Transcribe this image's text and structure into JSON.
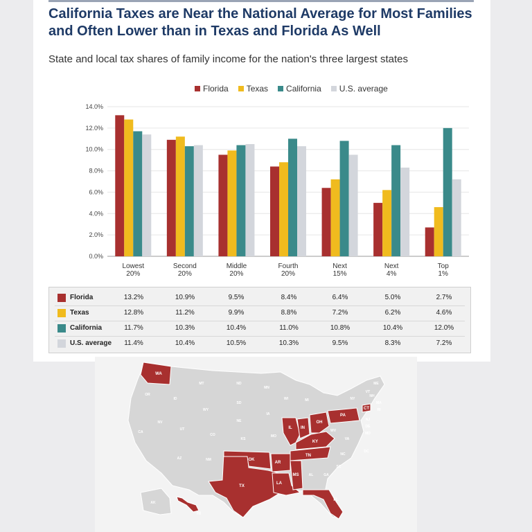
{
  "title": "California Taxes are Near the National Average for Most Families and Often Lower than in Texas and Florida As Well",
  "subtitle": "State and local tax shares of family income for the nation's three largest states",
  "colors": {
    "Florida": "#a8302f",
    "Texas": "#f0bb1e",
    "California": "#3a8a8a",
    "U.S. average": "#d3d6dc"
  },
  "chart_data": {
    "type": "bar",
    "categories": [
      "Lowest 20%",
      "Second 20%",
      "Middle 20%",
      "Fourth 20%",
      "Next 15%",
      "Next 4%",
      "Top 1%"
    ],
    "category_labels": [
      [
        "Lowest",
        "20%"
      ],
      [
        "Second",
        "20%"
      ],
      [
        "Middle",
        "20%"
      ],
      [
        "Fourth",
        "20%"
      ],
      [
        "Next",
        "15%"
      ],
      [
        "Next",
        "4%"
      ],
      [
        "Top",
        "1%"
      ]
    ],
    "series": [
      {
        "name": "Florida",
        "values": [
          13.2,
          10.9,
          9.5,
          8.4,
          6.4,
          5.0,
          2.7
        ]
      },
      {
        "name": "Texas",
        "values": [
          12.8,
          11.2,
          9.9,
          8.8,
          7.2,
          6.2,
          4.6
        ]
      },
      {
        "name": "California",
        "values": [
          11.7,
          10.3,
          10.4,
          11.0,
          10.8,
          10.4,
          12.0
        ]
      },
      {
        "name": "U.S. average",
        "values": [
          11.4,
          10.4,
          10.5,
          10.3,
          9.5,
          8.3,
          7.2
        ]
      }
    ],
    "ylim": [
      0,
      14
    ],
    "yticks": [
      "0.0%",
      "2.0%",
      "4.0%",
      "6.0%",
      "8.0%",
      "10.0%",
      "12.0%",
      "14.0%"
    ],
    "grid": true,
    "legend": "top-center"
  },
  "table": {
    "rows": [
      {
        "name": "Florida",
        "cells": [
          "13.2%",
          "10.9%",
          "9.5%",
          "8.4%",
          "6.4%",
          "5.0%",
          "2.7%"
        ]
      },
      {
        "name": "Texas",
        "cells": [
          "12.8%",
          "11.2%",
          "9.9%",
          "8.8%",
          "7.2%",
          "6.2%",
          "4.6%"
        ]
      },
      {
        "name": "California",
        "cells": [
          "11.7%",
          "10.3%",
          "10.4%",
          "11.0%",
          "10.8%",
          "10.4%",
          "12.0%"
        ]
      },
      {
        "name": "U.S. average",
        "cells": [
          "11.4%",
          "10.4%",
          "10.5%",
          "10.3%",
          "9.5%",
          "8.3%",
          "7.2%"
        ]
      }
    ]
  },
  "map": {
    "highlighted_states": [
      "WA",
      "TX",
      "OK",
      "AR",
      "LA",
      "MS",
      "TN",
      "KY",
      "IL",
      "IN",
      "OH",
      "PA",
      "FL",
      "CT",
      "HI"
    ],
    "other_labels": [
      "OR",
      "ID",
      "MT",
      "ND",
      "MN",
      "WI",
      "MI",
      "NY",
      "ME",
      "MA",
      "RI",
      "NJ",
      "DE",
      "MD",
      "DC",
      "VT",
      "NH",
      "WY",
      "SD",
      "IA",
      "NE",
      "NV",
      "UT",
      "CO",
      "KS",
      "MO",
      "CA",
      "AZ",
      "NM",
      "AL",
      "GA",
      "SC",
      "NC",
      "VA",
      "WV",
      "AK"
    ]
  }
}
